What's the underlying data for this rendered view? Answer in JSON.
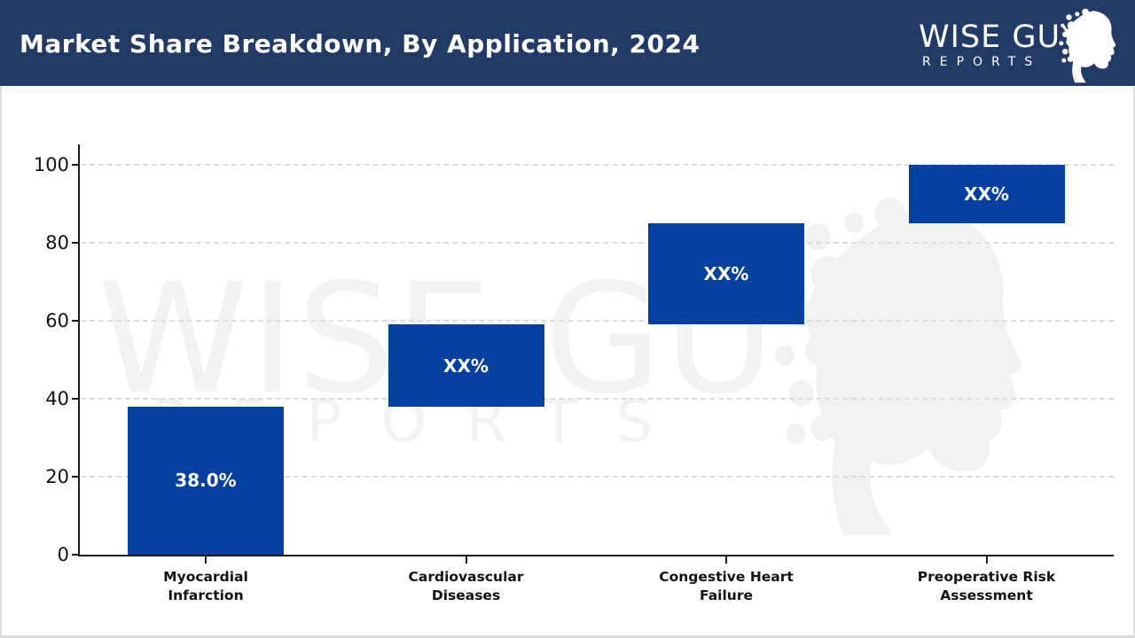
{
  "header": {
    "title": "Market Share Breakdown, By Application, 2024",
    "logo": {
      "line1": "WISE GUY",
      "line2": "REPORTS"
    }
  },
  "watermark": {
    "line1": "WISE GUY",
    "line2": "REPORTS"
  },
  "chart_data": {
    "type": "bar",
    "subtype": "floating-stacked-percentage-segments",
    "title": "Market Share Breakdown, By Application, 2024",
    "categories": [
      "Myocardial\nInfarction",
      "Cardiovascular\nDiseases",
      "Congestive Heart\nFailure",
      "Preoperative Risk\nAssessment"
    ],
    "segments": [
      {
        "category": "Myocardial Infarction",
        "start": 0,
        "end": 38,
        "value": 38,
        "label": "38.0%"
      },
      {
        "category": "Cardiovascular Diseases",
        "start": 38,
        "end": 59,
        "value": 21,
        "label": "XX%"
      },
      {
        "category": "Congestive Heart Failure",
        "start": 59,
        "end": 85,
        "value": 26,
        "label": "XX%"
      },
      {
        "category": "Preoperative Risk Assessment",
        "start": 85,
        "end": 100,
        "value": 15,
        "label": "XX%"
      }
    ],
    "ylim": [
      0,
      100
    ],
    "yticks": [
      0,
      20,
      40,
      60,
      80,
      100
    ],
    "xlabel": "",
    "ylabel": "",
    "grid": "dashed-horizontal",
    "legend": "none"
  },
  "colors": {
    "header_bg": "#223a66",
    "bar": "#04419e",
    "bar_label": "#ffffff",
    "axis": "#1a1a1a",
    "gridline": "#dcdcdc",
    "watermark": "#f2f2f2",
    "page_border": "#d9d9d9"
  }
}
